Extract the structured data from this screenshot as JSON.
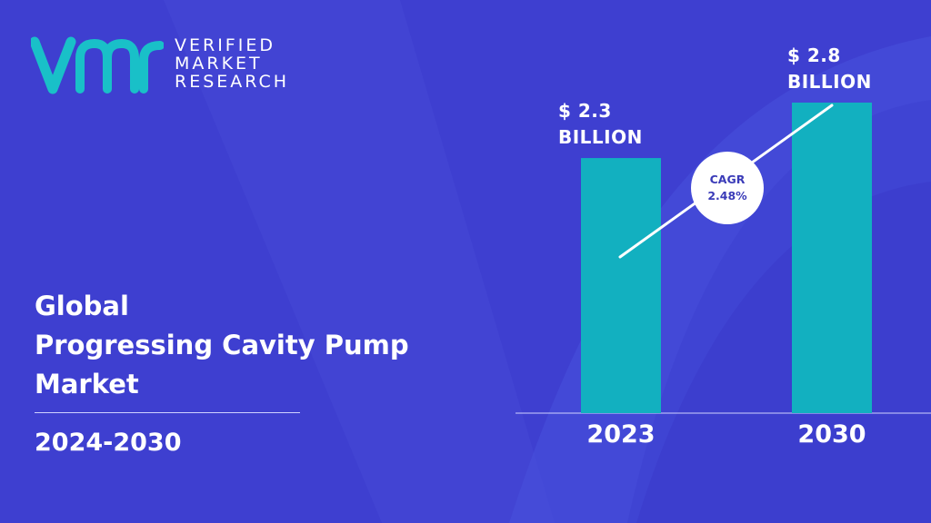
{
  "brand": {
    "line1": "VERIFIED",
    "line2": "MARKET",
    "line3": "RESEARCH",
    "logo_color": "#19c0c8"
  },
  "title": {
    "line1": "Global",
    "line2": "Progressing Cavity Pump",
    "line3": "Market"
  },
  "period": "2024-2030",
  "colors": {
    "background": "#3e3fd0",
    "background_shape": "#4a4fdb",
    "bar": "#12b0c0",
    "text": "#ffffff"
  },
  "chart_data": {
    "type": "bar",
    "categories": [
      "2023",
      "2030"
    ],
    "values": [
      2.3,
      2.8
    ],
    "value_labels": [
      {
        "line1": "$ 2.3",
        "line2": "BILLION"
      },
      {
        "line1": "$ 2.8",
        "line2": "BILLION"
      }
    ],
    "title": "",
    "xlabel": "",
    "ylabel": "",
    "ylim": [
      0,
      2.8
    ],
    "grid": false,
    "legend": "none",
    "annotation": {
      "label": "CAGR",
      "value": "2.48%"
    }
  }
}
